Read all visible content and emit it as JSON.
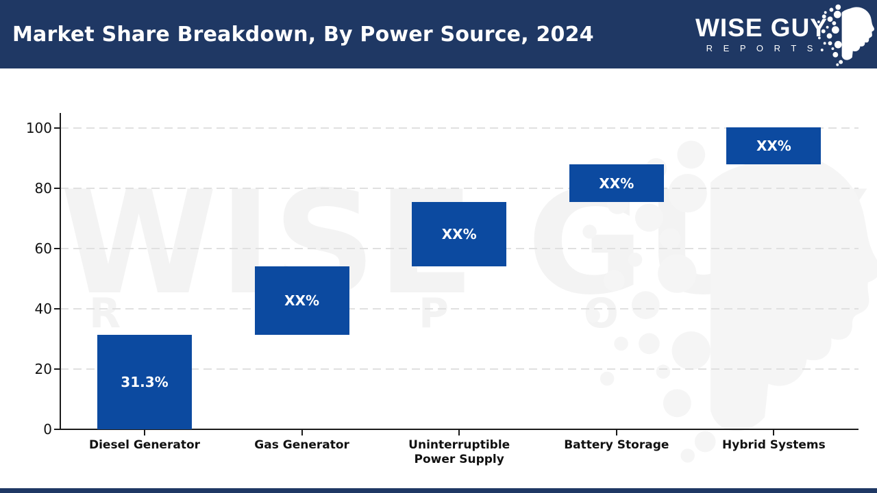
{
  "header": {
    "title": "Market Share Breakdown, By Power Source, 2024",
    "logo_line1": "WISE GUY",
    "logo_line2": "R E P O R T S"
  },
  "watermark": {
    "line1": "WISE GUY",
    "line2": "R E P O R T S"
  },
  "colors": {
    "header_bg": "#1F3864",
    "bar": "#0C4AA0",
    "grid": "#E0E0E0",
    "axis": "#1A1A1A",
    "bar_label": "#FFFFFF",
    "watermark": "#F3F3F3"
  },
  "chart_data": {
    "type": "bar",
    "subtype": "waterfall",
    "title": "Market Share Breakdown, By Power Source, 2024",
    "unit": "%",
    "xlabel": "",
    "ylabel": "",
    "grid": "dashed-horizontal",
    "legend": null,
    "ylim": [
      0,
      105
    ],
    "y_ticks": [
      0,
      20,
      40,
      60,
      80,
      100
    ],
    "categories": [
      "Diesel Generator",
      "Gas Generator",
      "Uninterruptible Power Supply",
      "Battery Storage",
      "Hybrid Systems"
    ],
    "tick_lines": [
      [
        "Diesel Generator"
      ],
      [
        "Gas Generator"
      ],
      [
        "Uninterruptible",
        "Power Supply"
      ],
      [
        "Battery Storage"
      ],
      [
        "Hybrid Systems"
      ]
    ],
    "bars": [
      {
        "category": "Diesel Generator",
        "start": 0,
        "end": 31.3,
        "label": "31.3%"
      },
      {
        "category": "Gas Generator",
        "start": 31.3,
        "end": 54.0,
        "label": "XX%"
      },
      {
        "category": "Uninterruptible Power Supply",
        "start": 54.0,
        "end": 75.4,
        "label": "XX%"
      },
      {
        "category": "Battery Storage",
        "start": 75.4,
        "end": 87.9,
        "label": "XX%"
      },
      {
        "category": "Hybrid Systems",
        "start": 87.9,
        "end": 100.2,
        "label": "XX%"
      }
    ]
  }
}
